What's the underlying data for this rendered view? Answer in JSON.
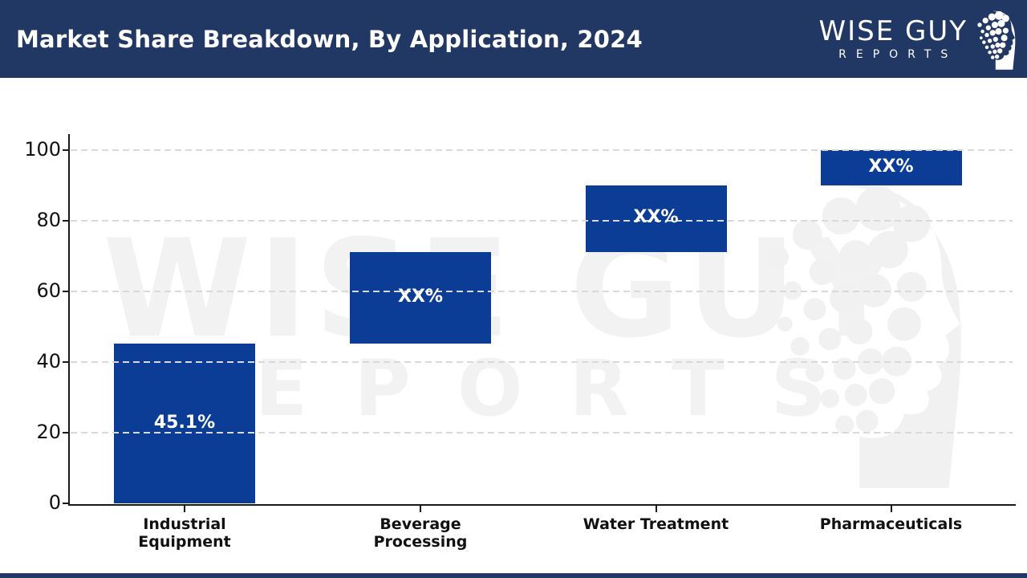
{
  "header": {
    "title": "Market Share Breakdown, By Application, 2024",
    "logo": {
      "name": "WISE GUY",
      "sub": "REPORTS",
      "head_icon": "dotted-head-profile-icon"
    }
  },
  "watermark": {
    "text_line1": "WISE GUY",
    "text_line2": "REPORTS",
    "head_icon": "dotted-head-profile-watermark"
  },
  "colors": {
    "header_bg": "#213764",
    "footer_bg": "#213764",
    "bar": "#0c3d96",
    "bar_label": "#ffffff",
    "grid": "#d9d9d9",
    "axis": "#1a1a1a",
    "tick_label": "#111111",
    "watermark": "#f2f2f2"
  },
  "chart_data": {
    "type": "bar",
    "subtype": "waterfall-floating-segments",
    "title": "Market Share Breakdown, By Application, 2024",
    "xlabel": "",
    "ylabel": "",
    "ylim": [
      0,
      105
    ],
    "yticks": [
      0,
      20,
      40,
      60,
      80,
      100
    ],
    "grid": "horizontal dashed gridlines drawn over bars",
    "legend": "none",
    "categories": [
      "Industrial Equipment",
      "Beverage Processing",
      "Water Treatment",
      "Pharmaceuticals"
    ],
    "category_label_lines": [
      [
        "Industrial",
        "Equipment"
      ],
      [
        "Beverage",
        "Processing"
      ],
      [
        "Water Treatment"
      ],
      [
        "Pharmaceuticals"
      ]
    ],
    "segments": [
      {
        "category": "Industrial Equipment",
        "start": 0,
        "end": 45.1,
        "value_label": "45.1%"
      },
      {
        "category": "Beverage Processing",
        "start": 45.1,
        "end": 71,
        "value_label": "XX%"
      },
      {
        "category": "Water Treatment",
        "start": 71,
        "end": 90,
        "value_label": "XX%"
      },
      {
        "category": "Pharmaceuticals",
        "start": 90,
        "end": 100,
        "value_label": "XX%"
      }
    ]
  }
}
